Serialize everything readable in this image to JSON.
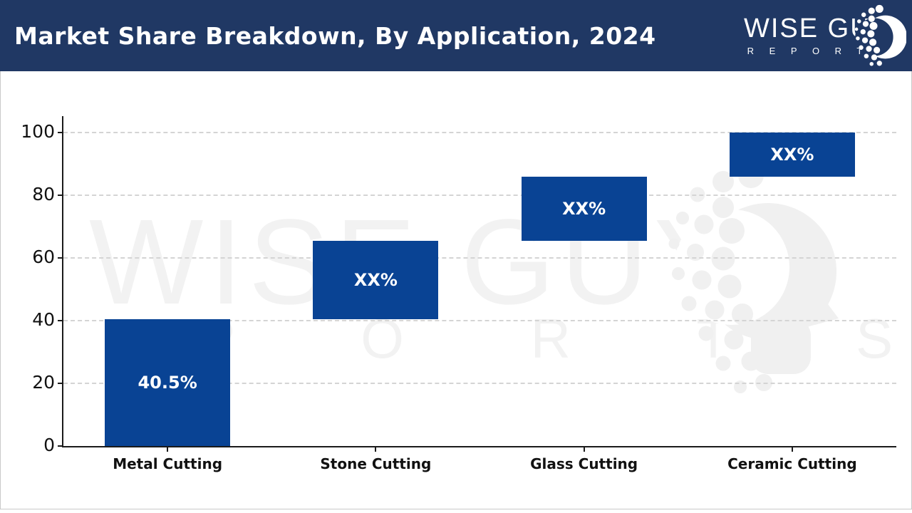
{
  "header": {
    "title": "Market Share Breakdown, By Application, 2024",
    "logo": {
      "wordmark": "WISE GUY",
      "subtext": "R E P O R T S"
    }
  },
  "watermark": {
    "line1": "WISE GUY",
    "line2": "P O R T S"
  },
  "colors": {
    "header_bg": "#203864",
    "bar": "#094394",
    "gridline": "#d4d4d4",
    "axis": "#1a1a1a",
    "tick_text": "#111111",
    "bar_label_text": "#ffffff",
    "watermark": "#f2f2f2"
  },
  "chart_data": {
    "type": "bar",
    "subtype": "waterfall",
    "title": "Market Share Breakdown, By Application, 2024",
    "xlabel": "",
    "ylabel": "",
    "categories": [
      "Metal Cutting",
      "Stone Cutting",
      "Glass Cutting",
      "Ceramic Cutting"
    ],
    "segments": [
      {
        "category": "Metal Cutting",
        "start": 0,
        "end": 40.5,
        "label": "40.5%"
      },
      {
        "category": "Stone Cutting",
        "start": 40.5,
        "end": 65.5,
        "label": "XX%"
      },
      {
        "category": "Glass Cutting",
        "start": 65.5,
        "end": 86,
        "label": "XX%"
      },
      {
        "category": "Ceramic Cutting",
        "start": 86,
        "end": 100,
        "label": "XX%"
      }
    ],
    "yticks": [
      0,
      20,
      40,
      60,
      80,
      100
    ],
    "ylim": [
      0,
      105
    ],
    "grid": "horizontal-dashed",
    "legend_position": "none"
  }
}
